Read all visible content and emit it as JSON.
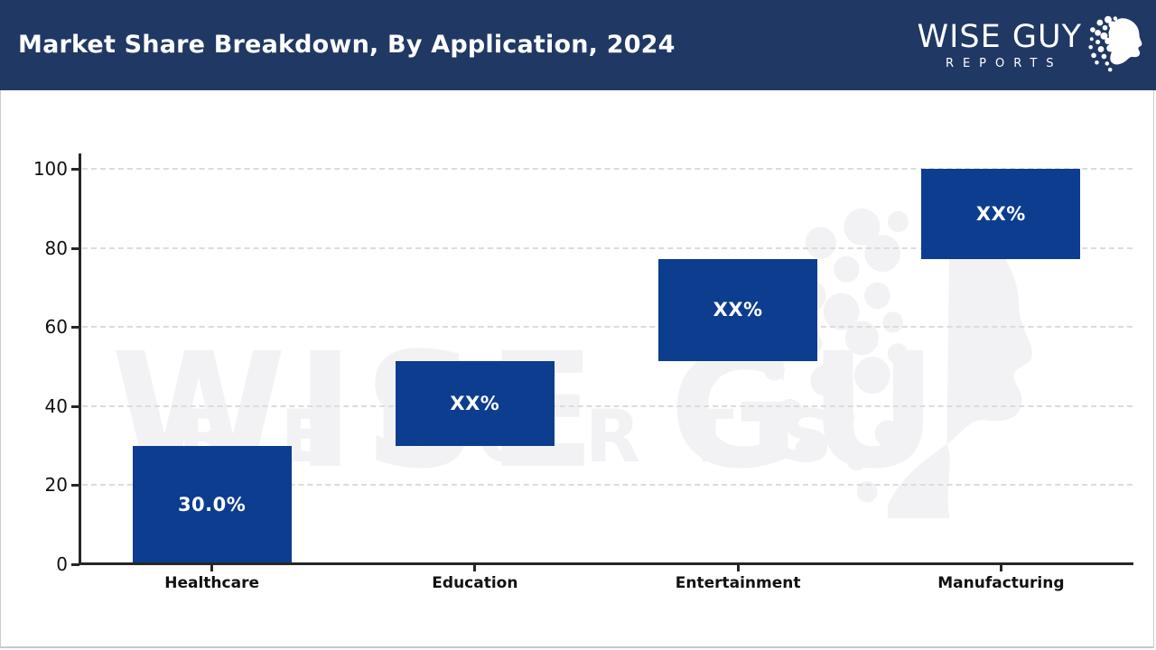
{
  "header": {
    "title": "Market Share Breakdown, By Application, 2024",
    "logo": {
      "line1": "WISE GUY",
      "line2": "REPORTS"
    }
  },
  "watermark": {
    "line1": "WISE GU",
    "line2": "REPORTS"
  },
  "chart_data": {
    "type": "bar",
    "subtype": "waterfall",
    "title": "Market Share Breakdown, By Application, 2024",
    "xlabel": "",
    "ylabel": "",
    "categories": [
      "Healthcare",
      "Education",
      "Entertainment",
      "Manufacturing"
    ],
    "segments": [
      {
        "category": "Healthcare",
        "start": 0,
        "end": 30,
        "label": "30.0%"
      },
      {
        "category": "Education",
        "start": 30,
        "end": 51.4,
        "label": "XX%"
      },
      {
        "category": "Entertainment",
        "start": 51.4,
        "end": 77.2,
        "label": "XX%"
      },
      {
        "category": "Manufacturing",
        "start": 77.2,
        "end": 100,
        "label": "XX%"
      }
    ],
    "yticks": [
      0,
      20,
      40,
      60,
      80,
      100
    ],
    "ylim": [
      0,
      104
    ],
    "grid": "horizontal-dashed",
    "legend": "none",
    "bar_color": "#0d3d8f",
    "axis_color": "#262626",
    "grid_color": "#dcdcdc"
  },
  "colors": {
    "header_bg": "#203864",
    "bar": "#0d3d8f",
    "watermark": "#f2f2f4",
    "border": "#c9c9c9"
  }
}
